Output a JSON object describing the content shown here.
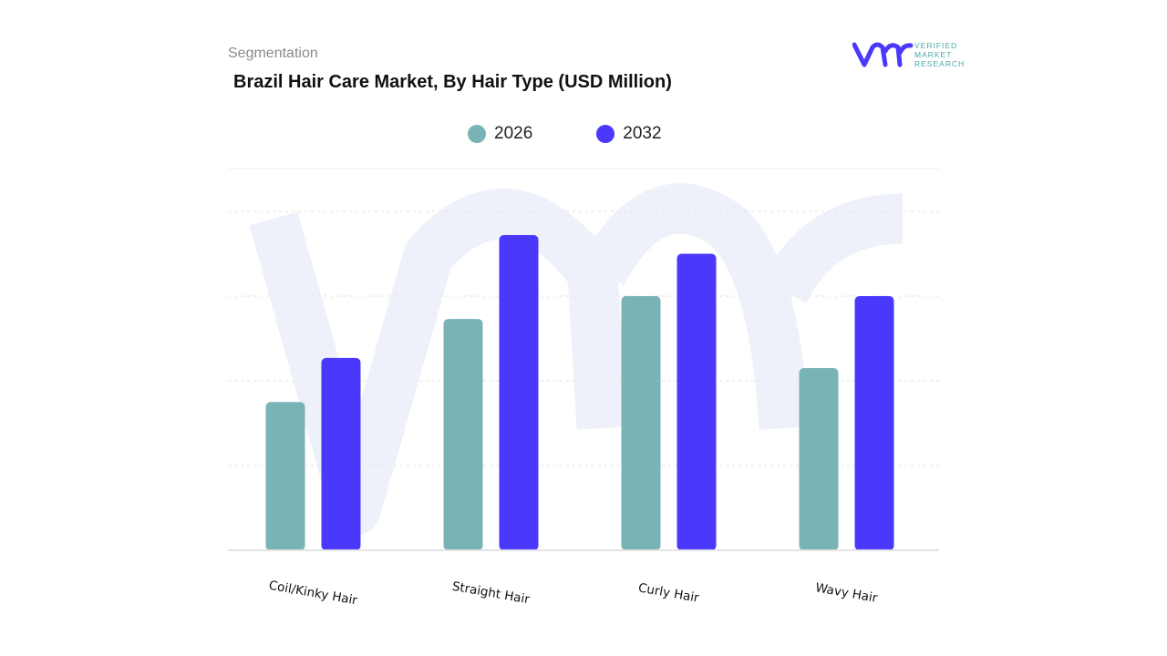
{
  "header": {
    "segment_label": "Segmentation",
    "title": "Brazil Hair Care Market, By Hair Type (USD Million)"
  },
  "logo": {
    "text_lines": [
      "VERIFIED",
      "MARKET",
      "RESEARCH"
    ],
    "mark": "vmr"
  },
  "chart_data": {
    "type": "bar",
    "title": "Brazil Hair Care Market, By Hair Type (USD Million)",
    "categories": [
      "Coil/Kinky Hair",
      "Straight Hair",
      "Curly Hair",
      "Wavy Hair"
    ],
    "series": [
      {
        "name": "2026",
        "color": "#7ab3b6",
        "values": [
          1.75,
          2.73,
          3.0,
          2.15
        ]
      },
      {
        "name": "2032",
        "color": "#4a38fd",
        "values": [
          2.27,
          3.72,
          3.5,
          3.0
        ]
      }
    ],
    "ylim": [
      0,
      4.5
    ],
    "gridlines": [
      1,
      2,
      3,
      4
    ],
    "y_tick_labels_shown": false,
    "grid": true,
    "legend_position": "top-center",
    "xlabel": "",
    "ylabel": ""
  }
}
